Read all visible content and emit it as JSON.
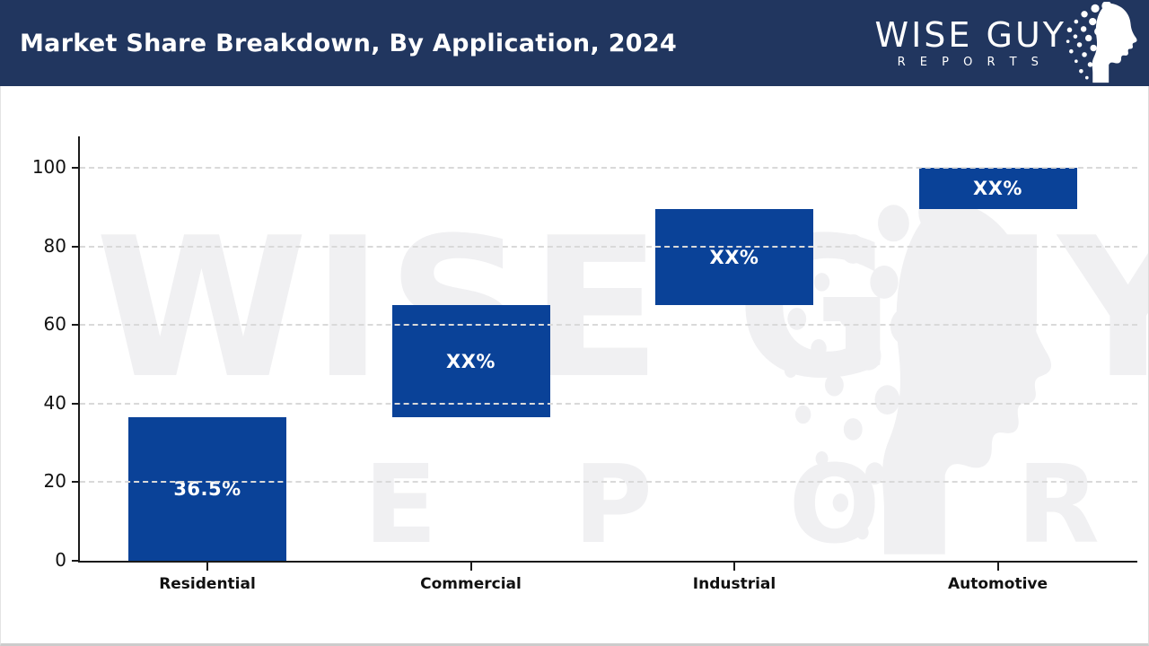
{
  "header": {
    "title": "Market Share Breakdown, By Application, 2024",
    "logo": {
      "line1": "WISE GUY",
      "line2": "R E P O R T S"
    }
  },
  "watermark": {
    "line1": "WISE GUY",
    "line2": "R E P O R T S"
  },
  "chart_data": {
    "type": "bar",
    "subtype": "waterfall",
    "title": "Market Share Breakdown, By Application, 2024",
    "xlabel": "",
    "ylabel": "",
    "categories": [
      "Residential",
      "Commercial",
      "Industrial",
      "Automotive"
    ],
    "segments": [
      {
        "category": "Residential",
        "start": 0,
        "end": 36.5,
        "label": "36.5%"
      },
      {
        "category": "Commercial",
        "start": 36.5,
        "end": 65,
        "label": "XX%"
      },
      {
        "category": "Industrial",
        "start": 65,
        "end": 89.4,
        "label": "XX%"
      },
      {
        "category": "Automotive",
        "start": 89.4,
        "end": 100,
        "label": "XX%"
      }
    ],
    "yticks": [
      0,
      20,
      40,
      60,
      80,
      100
    ],
    "ylim": [
      0,
      108
    ],
    "grid": "horizontal-dashed",
    "legend": null,
    "bar_color": "#0a4298",
    "label_color": "#ffffff",
    "axis_color": "#1a1a1a",
    "gridline_color": "#d9d9d9"
  },
  "colors": {
    "header_bg": "#21365f",
    "header_text": "#ffffff",
    "watermark": "#f0f0f2",
    "canvas_bg": "#ffffff"
  }
}
